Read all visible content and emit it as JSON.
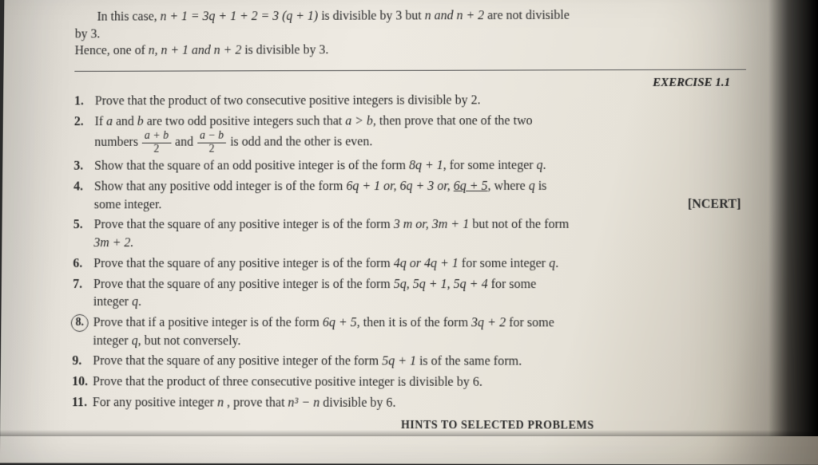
{
  "intro": {
    "line1_a": "In this case, ",
    "line1_b": " is divisible by 3 but ",
    "line1_c": " are not divisible",
    "expr1": "n + 1 = 3q + 1 + 2 = 3 (q + 1)",
    "n_and": "n and ",
    "np2": "n + 2",
    "line2": "by 3.",
    "line3_a": "Hence, one of ",
    "line3_b": " is divisible by 3.",
    "terms": "n, n + 1 and n + 2"
  },
  "exercise_label": "EXERCISE 1.1",
  "items": {
    "q1": "Prove that the product of two consecutive positive integers is divisible by 2.",
    "q2_a": "If ",
    "q2_b": " and ",
    "q2_c": " are two odd positive integers such that ",
    "q2_d": ", then prove that one of the two",
    "q2_e": "numbers ",
    "q2_f": " and ",
    "q2_g": " is odd and the other is even.",
    "a": "a",
    "b": "b",
    "agtb": "a > b",
    "frac1_num": "a + b",
    "frac1_den": "2",
    "frac2_num": "a − b",
    "frac2_den": "2",
    "q3_a": "Show that the square of an odd positive integer is of the form ",
    "q3_b": ",  for some integer ",
    "eight_q_1": "8q + 1",
    "q_letter": "q",
    "q4_a": "Show that any positive odd integer is of the form ",
    "q4_b": ", where ",
    "q4_c": " is",
    "q4_forms": "6q + 1 or, 6q + 3 or, ",
    "q4_last": "6q + 5",
    "q4_d": "some integer.",
    "ncert": "[NCERT]",
    "q5_a": "Prove that the square of any positive integer is of the form ",
    "q5_b": " but not of the form",
    "q5_forms": "3 m or, 3m + 1",
    "q5_c": "3m + 2.",
    "q6_a": "Prove that the square of any positive integer is of the form ",
    "q6_b": " for some integer ",
    "q6_forms": "4q or 4q + 1",
    "q7_a": "Prove that the square of any positive integer is of the form ",
    "q7_b": " for some",
    "q7_forms": "5q, 5q + 1, 5q + 4",
    "q7_c": "integer ",
    "q8_a": "Prove that if a positive integer is of the form ",
    "q8_b": ", then it is of the form ",
    "q8_c": " for some",
    "q8_f1": "6q + 5",
    "q8_f2": "3q + 2",
    "q8_d": "integer ",
    "q8_e": ", but not conversely.",
    "q9_a": "Prove that the square of any positive integer of the form ",
    "q9_b": " is of the same form.",
    "q9_f": "5q + 1",
    "q10": "Prove that the product of three consecutive positive integer is divisible by 6.",
    "q11_a": "For any positive integer ",
    "q11_b": " , prove that ",
    "q11_c": " divisible by 6.",
    "n": "n",
    "n3n": "n³ − n"
  },
  "footer": "HINTS TO SELECTED PROBLEMS"
}
